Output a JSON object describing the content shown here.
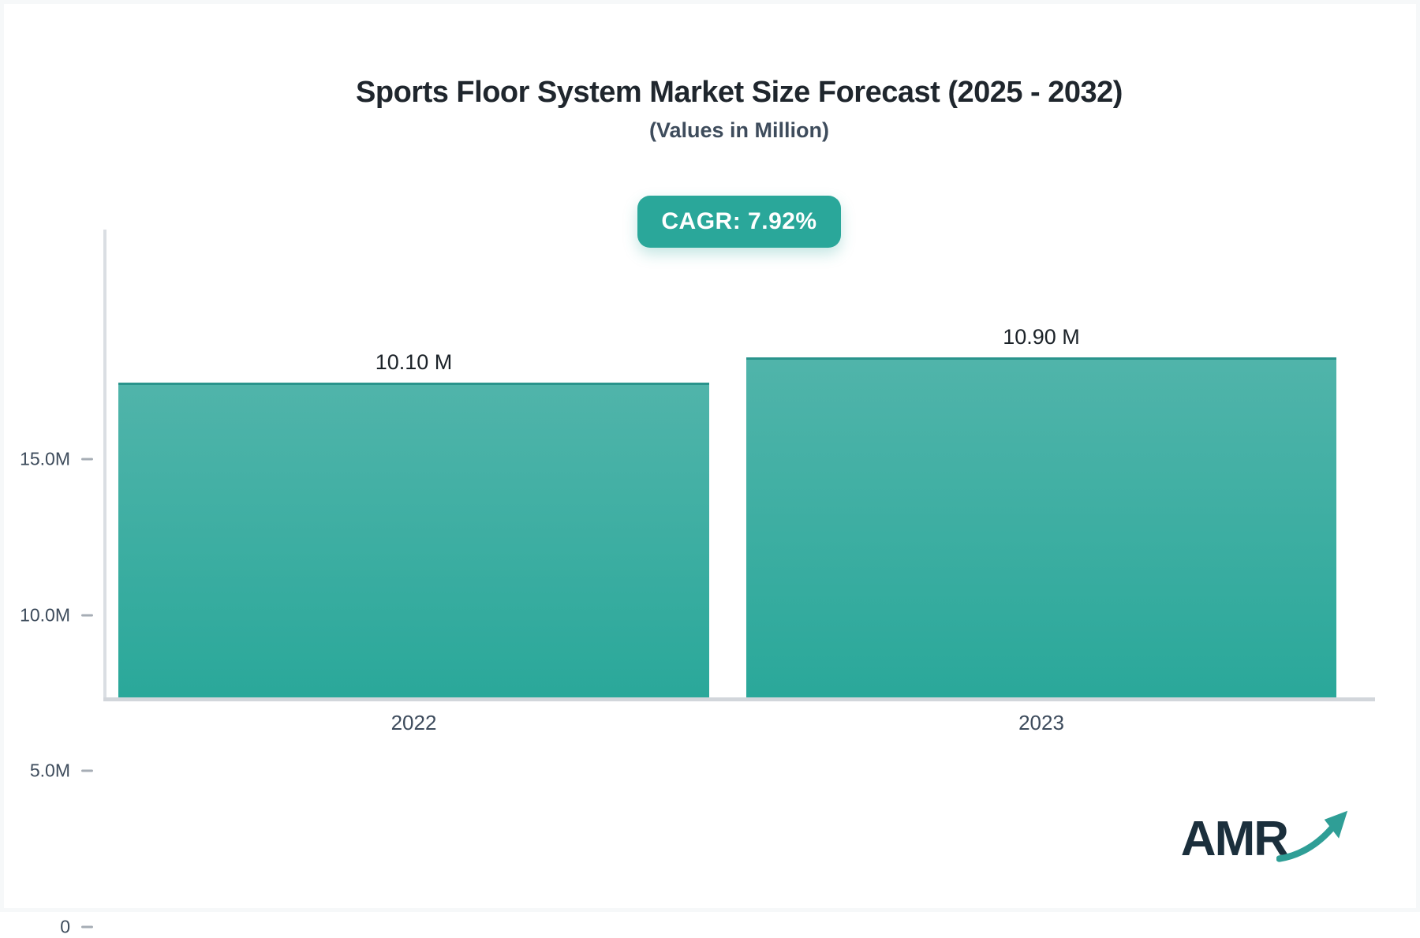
{
  "header": {
    "title": "Sports Floor System Market Size Forecast (2025 - 2032)",
    "subtitle": "(Values in Million)",
    "cagr_badge": "CAGR: 7.92%"
  },
  "chart_data": {
    "type": "bar",
    "title": "Sports Floor System Market Size Forecast (2025 - 2032)",
    "subtitle": "(Values in Million)",
    "annotation": "CAGR: 7.92%",
    "cagr_percent": 7.92,
    "unit": "Million",
    "categories": [
      "2022",
      "2023"
    ],
    "values": [
      10.1,
      10.9
    ],
    "value_labels": [
      "10.10 M",
      "10.90 M"
    ],
    "xlabel": "",
    "ylabel": "",
    "ylim": [
      0,
      15
    ],
    "ytick_values": [
      0,
      5,
      10,
      15
    ],
    "ytick_labels": [
      "0",
      "5.0M",
      "10.0M",
      "15.0M"
    ],
    "grid": false,
    "legend": false
  },
  "colors": {
    "accent_teal": "#2aa79a",
    "bar_gradient_top": "#50b4aa",
    "bar_gradient_bottom": "#2aa89a",
    "bar_top_border": "#2a948c",
    "axis_line": "#d2d6db",
    "text_dark": "#1f262d",
    "text_slate": "#3e4c5c",
    "logo_navy": "#1b2f3c"
  },
  "logo": {
    "text": "AMR"
  }
}
